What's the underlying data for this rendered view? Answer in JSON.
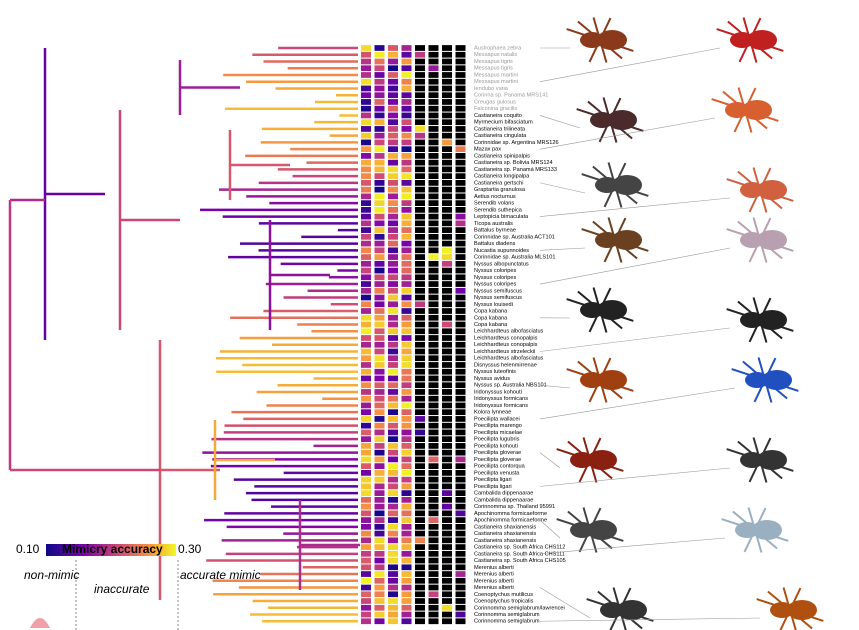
{
  "legend": {
    "title": "Mimicry accuracy",
    "min": "0.10",
    "max": "0.30",
    "zones": [
      "non-mimic",
      "inaccurate",
      "accurate mimic"
    ]
  },
  "species": [
    "Austrophaea zebra",
    "Messapus natalis",
    "Messapus tigris",
    "Messapus tigris",
    "Messapus martini",
    "Messapus martini",
    "Iendubo varia",
    "Corinna sp. Panamá MRS141",
    "Creugas gulosus",
    "Falconina gracilis",
    "Castianeira coquito",
    "Myrmecium bifasciatum",
    "Castianeira trilineata",
    "Castianeira cingulata",
    "Corinnidae sp. Argentina MRS126",
    "Mazax pax",
    "Castianeira spinipalpis",
    "Castianeira sp. Bolivia MRS124",
    "Castianeira sp. Panamá MRS133",
    "Castianeira longipalpa",
    "Castianeira gertschi",
    "Graptartia granulosa",
    "Aetius nocturnus",
    "Serendib volans",
    "Serendib suthepica",
    "Leptopicia bimaculata",
    "Ticopa australis",
    "Battalus byrneae",
    "Corinnidae sp. Australia ACT101",
    "Battalus diadens",
    "Nucastia supunnoides",
    "Corinnidae sp. Australia MLS101",
    "Nyssus albopunctatus",
    "Nyssus coloripes",
    "Nyssus coloripes",
    "Nyssus coloripes",
    "Nyssus semifuscus",
    "Nyssus semifuscus",
    "Nyssus louisedi",
    "Copa kabana",
    "Copa kabana",
    "Copa kabana",
    "Leichhardteus albofasciatus",
    "Leichhardteus conopalpis",
    "Leichhardteus conopalpis",
    "Leichhardteus strzeleckii",
    "Leichhardteus albofasciatus",
    "Disnyssus helenmirrenae",
    "Nyssus luteofinis",
    "Nyssus avidus",
    "Nyssus sp. Australia NBS101",
    "Iridonyssus kohouti",
    "Iridonyssus formicans",
    "Iridonyssus formicans",
    "Kolora lynneae",
    "Poecilipta wallacei",
    "Poecilipta marengo",
    "Poecilipta micaelae",
    "Poecilipta lugubris",
    "Poecilipta kohouti",
    "Poecilipta gloverae",
    "Poecilipta gloverae",
    "Poecilipta contorqua",
    "Poecilipta venusta",
    "Poecilipta ligari",
    "Poecilipta ligari",
    "Cambalida dippenaarae",
    "Cambalida dippenaarae",
    "Corinnomma sp. Thailand 95991",
    "Apochinomma formicaeforme",
    "Apochinomma formicaeforme",
    "Castianeira shaxianensis",
    "Castianeira shaxianensis",
    "Castianeira shaxianensis",
    "Castianeira sp. South Africa CHS112",
    "Castianeira sp. South Africa CHS111",
    "Castianeira sp. South Africa CHS105",
    "Merenius alberti",
    "Merenius alberti",
    "Merenius alberti",
    "Merenius alberti",
    "Coenoptychus mutilicus",
    "Coenoptychus tropicalis",
    "Corinnomma semiglabrum/lawrencei",
    "Corinnomma semiglabrum",
    "Corinnomma semiglabrum"
  ]
}
